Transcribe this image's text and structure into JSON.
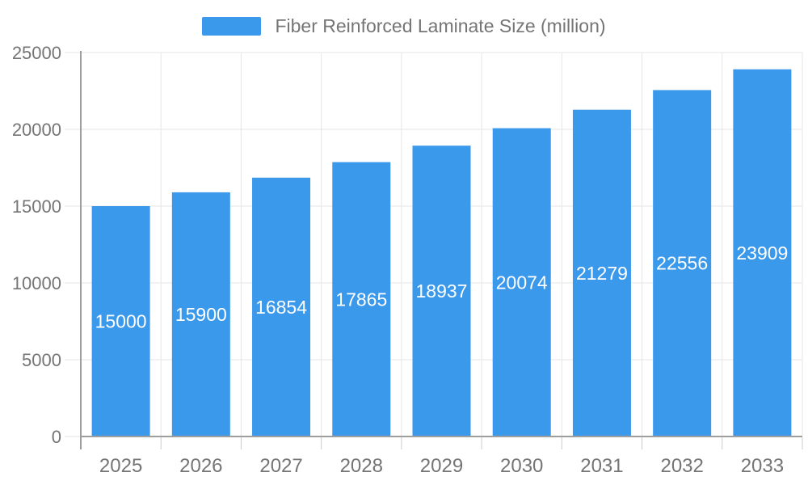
{
  "chart_data": {
    "type": "bar",
    "categories": [
      "2025",
      "2026",
      "2027",
      "2028",
      "2029",
      "2030",
      "2031",
      "2032",
      "2033"
    ],
    "series": [
      {
        "name": "Fiber Reinforced Laminate Size (million)",
        "values": [
          15000,
          15900,
          16854,
          17865,
          18937,
          20074,
          21279,
          22556,
          23909
        ]
      }
    ],
    "xlabel": "",
    "ylabel": "",
    "ylim": [
      0,
      25000
    ],
    "yticks": [
      0,
      5000,
      10000,
      15000,
      20000,
      25000
    ],
    "grid": true,
    "legend_position": "top-center",
    "value_label_position": "inside-middle",
    "colors": {
      "bar": "#3B99EC",
      "bar_value_label": "#FFFFFF",
      "axis_text": "#757575",
      "axis_line": "#9E9E9E",
      "gridline": "#E6E6E6",
      "tick_minor": "#CCCCCC",
      "background": "#FFFFFF"
    }
  }
}
